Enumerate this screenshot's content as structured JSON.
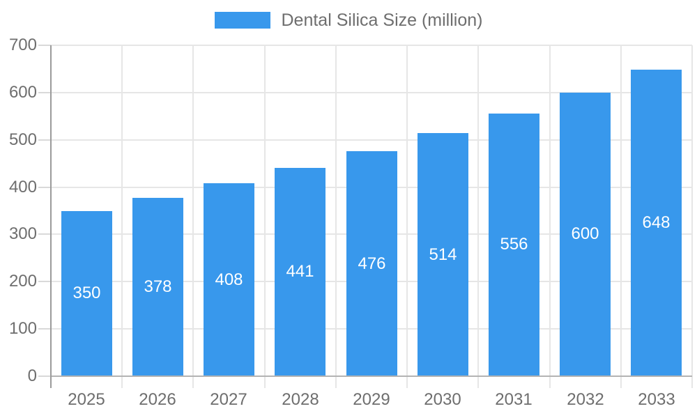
{
  "chart_data": {
    "type": "bar",
    "legend": "Dental Silica Size (million)",
    "categories": [
      "2025",
      "2026",
      "2027",
      "2028",
      "2029",
      "2030",
      "2031",
      "2032",
      "2033"
    ],
    "values": [
      350,
      378,
      408,
      441,
      476,
      514,
      556,
      600,
      648
    ],
    "series": [
      {
        "name": "Dental Silica Size (million)",
        "values": [
          350,
          378,
          408,
          441,
          476,
          514,
          556,
          600,
          648
        ]
      }
    ],
    "title": "",
    "xlabel": "",
    "ylabel": "",
    "ylim": [
      0,
      700
    ],
    "yticks": [
      0,
      100,
      200,
      300,
      400,
      500,
      600,
      700
    ],
    "grid": true,
    "legend_position": "top",
    "value_labels": "inside-center"
  },
  "colors": {
    "bar": "#3898EC",
    "bar_label": "#ffffff",
    "axis_text": "#6e6e6e",
    "gridline": "#e6e6e6",
    "ytick": "#d9d9d9",
    "baseline": "#b3b3b3",
    "axis_line": "#9b9b9b",
    "background": "#ffffff"
  }
}
